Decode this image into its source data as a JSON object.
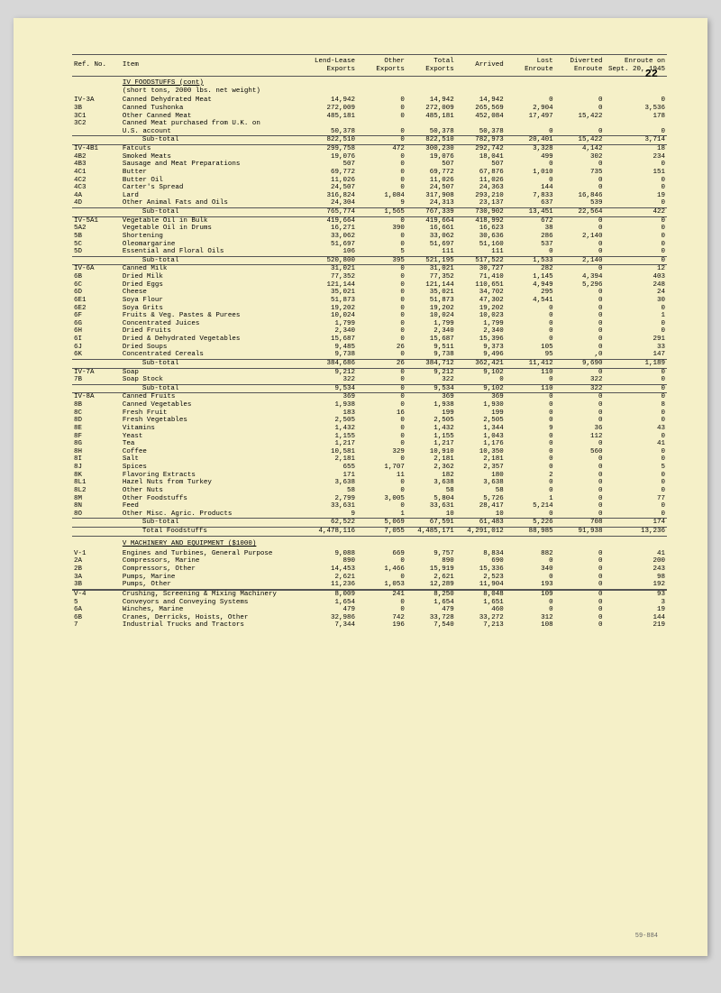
{
  "page_number": "22",
  "doc_code": "59-884",
  "colors": {
    "paper": "#f5f0c8",
    "ink": "#333333",
    "border": "#555555",
    "background": "#d7d7d7"
  },
  "headers": [
    "Ref. No.",
    "Item",
    "Lend-Lease Exports",
    "Other Exports",
    "Total Exports",
    "Arrived",
    "Lost Enroute",
    "Diverted Enroute",
    "Enroute on Sept. 20, 1945"
  ],
  "section_iv_title": "IV FOODSTUFFS (cont)",
  "section_iv_sub": "(short tons, 2000 lbs. net weight)",
  "groups": [
    {
      "rows": [
        [
          "IV-3A",
          "Canned Dehydrated Meat",
          "14,942",
          "0",
          "14,942",
          "14,942",
          "0",
          "0",
          "0"
        ],
        [
          "3B",
          "Canned Tushonka",
          "272,009",
          "0",
          "272,009",
          "265,569",
          "2,904",
          "0",
          "3,536"
        ],
        [
          "3C1",
          "Other Canned Meat",
          "485,181",
          "0",
          "485,181",
          "452,084",
          "17,497",
          "15,422",
          "178"
        ],
        [
          "3C2",
          "Canned Meat purchased from U.K. on",
          "",
          "",
          "",
          "",
          "",
          "",
          ""
        ],
        [
          "",
          "  U.S. account",
          "50,378",
          "0",
          "50,378",
          "50,378",
          "0",
          "0",
          "0"
        ]
      ],
      "subtotal": [
        "",
        "Sub-total",
        "822,510",
        "0",
        "822,510",
        "782,973",
        "20,401",
        "15,422",
        "3,714"
      ]
    },
    {
      "rows": [
        [
          "IV-4B1",
          "Fatcuts",
          "299,758",
          "472",
          "300,230",
          "292,742",
          "3,328",
          "4,142",
          "18"
        ],
        [
          "4B2",
          "Smoked Meats",
          "19,076",
          "0",
          "19,076",
          "18,041",
          "499",
          "302",
          "234"
        ],
        [
          "4B3",
          "Sausage and Meat Preparations",
          "507",
          "0",
          "507",
          "507",
          "0",
          "0",
          "0"
        ],
        [
          "4C1",
          "Butter",
          "69,772",
          "0",
          "69,772",
          "67,876",
          "1,010",
          "735",
          "151"
        ],
        [
          "4C2",
          "Butter Oil",
          "11,026",
          "0",
          "11,026",
          "11,026",
          "0",
          "0",
          "0"
        ],
        [
          "4C3",
          "Carter's Spread",
          "24,507",
          "0",
          "24,507",
          "24,363",
          "144",
          "0",
          "0"
        ],
        [
          "4A",
          "Lard",
          "316,824",
          "1,084",
          "317,908",
          "293,210",
          "7,833",
          "16,846",
          "19"
        ],
        [
          "4D",
          "Other Animal Fats and Oils",
          "24,304",
          "9",
          "24,313",
          "23,137",
          "637",
          "539",
          "0"
        ]
      ],
      "subtotal": [
        "",
        "Sub-total",
        "765,774",
        "1,565",
        "767,339",
        "730,902",
        "13,451",
        "22,564",
        "422"
      ]
    },
    {
      "rows": [
        [
          "IV-5A1",
          "Vegetable Oil in Bulk",
          "419,664",
          "0",
          "419,664",
          "418,992",
          "672",
          "0",
          "0"
        ],
        [
          "5A2",
          "Vegetable Oil in Drums",
          "16,271",
          "390",
          "16,661",
          "16,623",
          "38",
          "0",
          "0"
        ],
        [
          "5B",
          "Shortening",
          "33,062",
          "0",
          "33,062",
          "30,636",
          "286",
          "2,140",
          "0"
        ],
        [
          "5C",
          "Oleomargarine",
          "51,697",
          "0",
          "51,697",
          "51,160",
          "537",
          "0",
          "0"
        ],
        [
          "5D",
          "Essential and Floral Oils",
          "106",
          "5",
          "111",
          "111",
          "0",
          "0",
          "0"
        ]
      ],
      "subtotal": [
        "",
        "Sub-total",
        "520,800",
        "395",
        "521,195",
        "517,522",
        "1,533",
        "2,140",
        "0"
      ]
    },
    {
      "rows": [
        [
          "IV-6A",
          "Canned Milk",
          "31,021",
          "0",
          "31,021",
          "30,727",
          "282",
          "0",
          "12"
        ],
        [
          "6B",
          "Dried Milk",
          "77,352",
          "0",
          "77,352",
          "71,410",
          "1,145",
          "4,394",
          "403"
        ],
        [
          "6C",
          "Dried Eggs",
          "121,144",
          "0",
          "121,144",
          "110,651",
          "4,949",
          "5,296",
          "248"
        ],
        [
          "6D",
          "Cheese",
          "35,021",
          "0",
          "35,021",
          "34,702",
          "295",
          "0",
          "24"
        ],
        [
          "6E1",
          "Soya Flour",
          "51,873",
          "0",
          "51,873",
          "47,302",
          "4,541",
          "0",
          "30"
        ],
        [
          "6E2",
          "Soya Grits",
          "19,202",
          "0",
          "19,202",
          "19,202",
          "0",
          "0",
          "0"
        ],
        [
          "6F",
          "Fruits & Veg. Pastes & Purees",
          "10,024",
          "0",
          "10,024",
          "10,023",
          "0",
          "0",
          "1"
        ],
        [
          "6G",
          "Concentrated Juices",
          "1,799",
          "0",
          "1,799",
          "1,799",
          "0",
          "0",
          "0"
        ],
        [
          "6H",
          "Dried Fruits",
          "2,340",
          "0",
          "2,340",
          "2,340",
          "0",
          "0",
          "0"
        ],
        [
          "6I",
          "Dried & Dehydrated Vegetables",
          "15,687",
          "0",
          "15,687",
          "15,396",
          "0",
          "0",
          "291"
        ],
        [
          "6J",
          "Dried Soups",
          "9,485",
          "26",
          "9,511",
          "9,373",
          "105",
          "0",
          "33"
        ],
        [
          "6K",
          "Concentrated Cereals",
          "9,738",
          "0",
          "9,738",
          "9,496",
          "95",
          ",0",
          "147"
        ]
      ],
      "subtotal": [
        "",
        "Sub-total",
        "384,686",
        "26",
        "384,712",
        "362,421",
        "11,412",
        "9,690",
        "1,189"
      ]
    },
    {
      "rows": [
        [
          "IV-7A",
          "Soap",
          "9,212",
          "0",
          "9,212",
          "9,102",
          "110",
          "0",
          "0"
        ],
        [
          "7B",
          "Soap Stock",
          "322",
          "0",
          "322",
          "0",
          "0",
          "322",
          "0"
        ]
      ],
      "subtotal": [
        "",
        "Sub-total",
        "9,534",
        "0",
        "9,534",
        "9,102",
        "110",
        "322",
        "0"
      ]
    },
    {
      "rows": [
        [
          "IV-8A",
          "Canned Fruits",
          "369",
          "0",
          "369",
          "369",
          "0",
          "0",
          "0"
        ],
        [
          "8B",
          "Canned Vegetables",
          "1,938",
          "0",
          "1,938",
          "1,930",
          "0",
          "0",
          "8"
        ],
        [
          "8C",
          "Fresh Fruit",
          "183",
          "16",
          "199",
          "199",
          "0",
          "0",
          "0"
        ],
        [
          "8D",
          "Fresh Vegetables",
          "2,505",
          "0",
          "2,505",
          "2,505",
          "0",
          "0",
          "0"
        ],
        [
          "8E",
          "Vitamins",
          "1,432",
          "0",
          "1,432",
          "1,344",
          "9",
          "36",
          "43"
        ],
        [
          "8F",
          "Yeast",
          "1,155",
          "0",
          "1,155",
          "1,043",
          "0",
          "112",
          "0"
        ],
        [
          "8G",
          "Tea",
          "1,217",
          "0",
          "1,217",
          "1,176",
          "0",
          "0",
          "41"
        ],
        [
          "8H",
          "Coffee",
          "10,581",
          "329",
          "10,910",
          "10,350",
          "0",
          "560",
          "0"
        ],
        [
          "8I",
          "Salt",
          "2,181",
          "0",
          "2,181",
          "2,181",
          "0",
          "0",
          "0"
        ],
        [
          "8J",
          "Spices",
          "655",
          "1,707",
          "2,362",
          "2,357",
          "0",
          "0",
          "5"
        ],
        [
          "8K",
          "Flavoring Extracts",
          "171",
          "11",
          "182",
          "180",
          "2",
          "0",
          "0"
        ],
        [
          "8L1",
          "Hazel Nuts from Turkey",
          "3,638",
          "0",
          "3,638",
          "3,638",
          "0",
          "0",
          "0"
        ],
        [
          "8L2",
          "Other Nuts",
          "58",
          "0",
          "58",
          "58",
          "0",
          "0",
          "0"
        ],
        [
          "8M",
          "Other Foodstuffs",
          "2,799",
          "3,005",
          "5,804",
          "5,726",
          "1",
          "0",
          "77"
        ],
        [
          "8N",
          "Feed",
          "33,631",
          "0",
          "33,631",
          "28,417",
          "5,214",
          "0",
          "0"
        ],
        [
          "8O",
          "Other Misc. Agric. Products",
          "9",
          "1",
          "10",
          "10",
          "0",
          "0",
          "0"
        ]
      ],
      "subtotal": [
        "",
        "Sub-total",
        "62,522",
        "5,069",
        "67,591",
        "61,483",
        "5,226",
        "708",
        "174"
      ]
    }
  ],
  "total_foodstuffs": [
    "",
    "Total Foodstuffs",
    "4,478,116",
    "7,055",
    "4,485,171",
    "4,291,012",
    "88,985",
    "91,938",
    "13,236"
  ],
  "section_v_title": "V MACHINERY AND EQUIPMENT ($1000)",
  "groups_v": [
    {
      "rows": [
        [
          "V-1",
          "Engines and Turbines, General Purpose",
          "9,088",
          "669",
          "9,757",
          "8,834",
          "882",
          "0",
          "41"
        ],
        [
          "2A",
          "Compressors, Marine",
          "890",
          "0",
          "890",
          "690",
          "0",
          "0",
          "200"
        ],
        [
          "2B",
          "Compressors, Other",
          "14,453",
          "1,466",
          "15,919",
          "15,336",
          "340",
          "0",
          "243"
        ],
        [
          "3A",
          "Pumps, Marine",
          "2,621",
          "0",
          "2,621",
          "2,523",
          "0",
          "0",
          "98"
        ],
        [
          "3B",
          "Pumps, Other",
          "11,236",
          "1,053",
          "12,289",
          "11,904",
          "193",
          "0",
          "192"
        ]
      ],
      "subtotal": null
    },
    {
      "rows": [
        [
          "V-4",
          "Crushing, Screening & Mixing Machinery",
          "8,009",
          "241",
          "8,250",
          "8,048",
          "109",
          "0",
          "93"
        ],
        [
          "5",
          "Conveyors and Conveying Systems",
          "1,654",
          "0",
          "1,654",
          "1,651",
          "0",
          "0",
          "3"
        ],
        [
          "6A",
          "Winches, Marine",
          "479",
          "0",
          "479",
          "460",
          "0",
          "0",
          "19"
        ],
        [
          "6B",
          "Cranes, Derricks, Hoists, Other",
          "32,986",
          "742",
          "33,728",
          "33,272",
          "312",
          "0",
          "144"
        ],
        [
          "7",
          "Industrial Trucks and Tractors",
          "7,344",
          "196",
          "7,540",
          "7,213",
          "108",
          "0",
          "219"
        ]
      ],
      "subtotal": null
    }
  ]
}
